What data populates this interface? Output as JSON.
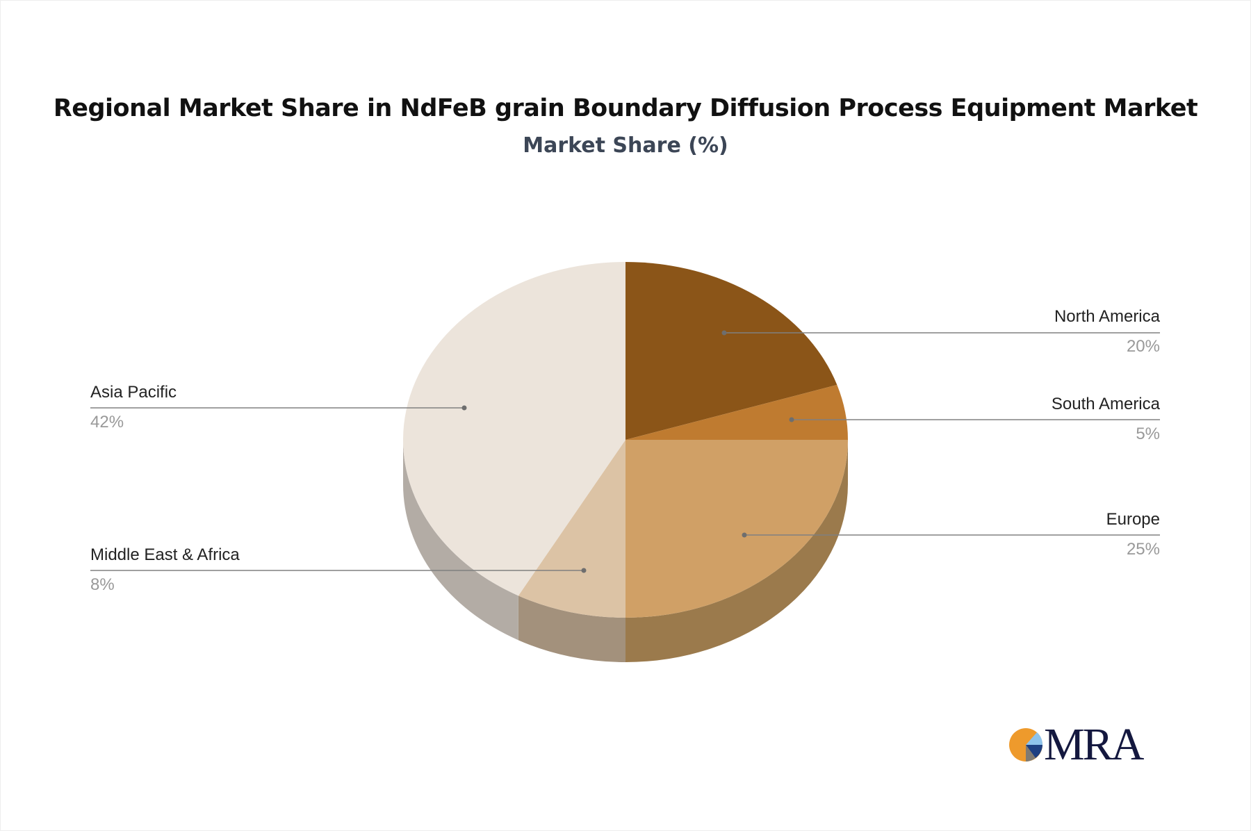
{
  "chart_data": {
    "type": "pie",
    "title": "Regional Market Share in NdFeB grain Boundary Diffusion Process Equipment Market",
    "subtitle": "Market Share (%)",
    "slices": [
      {
        "label": "North America",
        "value": 20,
        "display": "20%",
        "color": "#8b5518",
        "side": "#6b4214"
      },
      {
        "label": "South America",
        "value": 5,
        "display": "5%",
        "color": "#bf7b30",
        "side": "#96612a"
      },
      {
        "label": "Europe",
        "value": 25,
        "display": "25%",
        "color": "#d0a066",
        "side": "#9b7a4c"
      },
      {
        "label": "Middle East & Africa",
        "value": 8,
        "display": "8%",
        "color": "#dcc3a5",
        "side": "#a3917c"
      },
      {
        "label": "Asia Pacific",
        "value": 42,
        "display": "42%",
        "color": "#ece4db",
        "side": "#b3aca5"
      }
    ]
  },
  "logo": {
    "text": "MRA"
  }
}
